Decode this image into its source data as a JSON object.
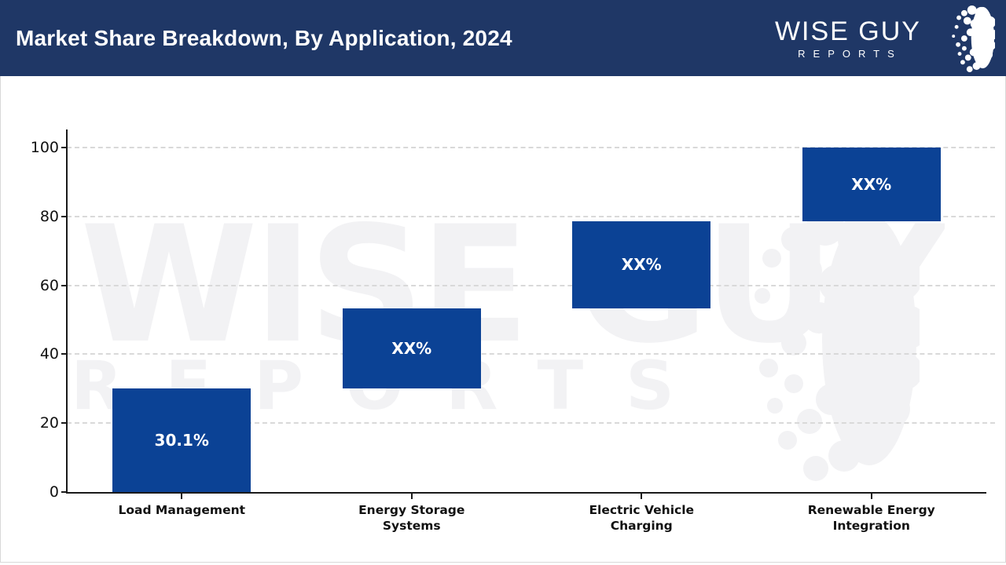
{
  "header": {
    "title": "Market Share Breakdown, By Application, 2024",
    "bg_color": "#1f3766",
    "logo": {
      "line1": "WISE GUY",
      "line2": "REPORTS"
    }
  },
  "watermark": {
    "line1": "WISE GUY",
    "line2": "REPORTS"
  },
  "chart_data": {
    "type": "bar",
    "subtype": "waterfall-segments",
    "title": "Market Share Breakdown, By Application, 2024",
    "categories": [
      "Load Management",
      "Energy Storage Systems",
      "Electric Vehicle Charging",
      "Renewable Energy Integration"
    ],
    "category_display": [
      "Load Management",
      "Energy Storage\nSystems",
      "Electric Vehicle\nCharging",
      "Renewable Energy\nIntegration"
    ],
    "series": [
      {
        "name": "Market Share (%)",
        "segments": [
          {
            "category": "Load Management",
            "start": 0,
            "end": 30.1,
            "label": "30.1%"
          },
          {
            "category": "Energy Storage Systems",
            "start": 30.1,
            "end": 53.4,
            "label": "XX%"
          },
          {
            "category": "Electric Vehicle Charging",
            "start": 53.4,
            "end": 78.7,
            "label": "XX%"
          },
          {
            "category": "Renewable Energy Integration",
            "start": 78.7,
            "end": 100,
            "label": "XX%"
          }
        ]
      }
    ],
    "ylim": [
      0,
      100
    ],
    "yticks": [
      0,
      20,
      40,
      60,
      80,
      100
    ],
    "xlabel": "",
    "ylabel": "",
    "grid": "horizontal-dashed",
    "legend": "none",
    "bar_color": "#0b4295",
    "bar_label_color": "#ffffff",
    "axis_color": "#1a1a1a",
    "grid_color": "#d9d9d9"
  }
}
